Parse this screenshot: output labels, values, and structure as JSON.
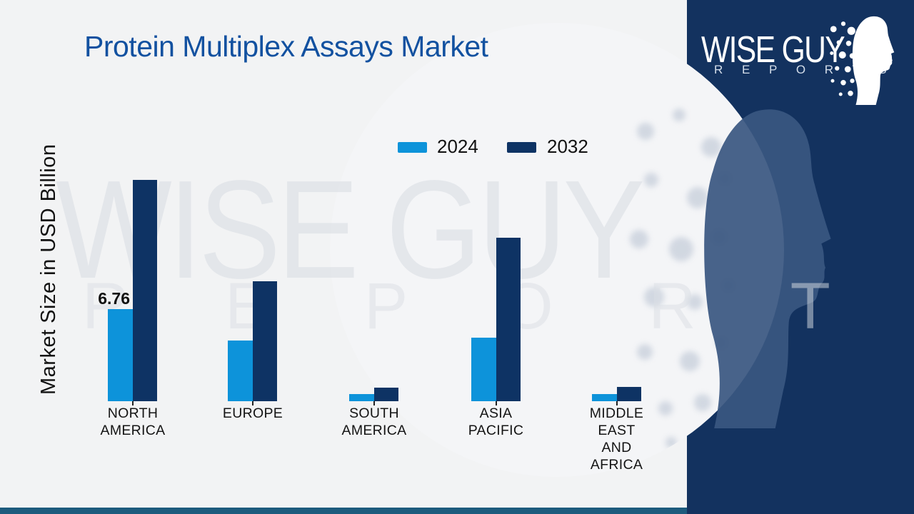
{
  "page": {
    "background": "#f2f3f4"
  },
  "header": {
    "title": "Protein Multiplex Assays Market",
    "title_color": "#1251a0"
  },
  "logo": {
    "brand": "WISE GUY",
    "sub": "R E P O R T S"
  },
  "watermark": {
    "line1": "WISE GUY",
    "line2": "R E P O R T S"
  },
  "colors": {
    "bar_2024": "#0d93da",
    "bar_2032": "#0e3364",
    "brand_panel": "#13325f",
    "bottom_strip": "#1d5b7d",
    "face_silhouette": "#3a5781"
  },
  "chart_data": {
    "type": "bar",
    "title": "Protein Multiplex Assays Market",
    "xlabel": "",
    "ylabel": "Market Size in USD Billion",
    "categories": [
      "NORTH AMERICA",
      "EUROPE",
      "SOUTH AMERICA",
      "ASIA PACIFIC",
      "MIDDLE EAST AND AFRICA"
    ],
    "categories_display": [
      "NORTH\nAMERICA",
      "EUROPE",
      "SOUTH\nAMERICA",
      "ASIA\nPACIFIC",
      "MIDDLE\nEAST\nAND\nAFRICA"
    ],
    "series": [
      {
        "name": "2024",
        "color": "#0d93da",
        "values": [
          6.76,
          4.45,
          0.52,
          4.66,
          0.52
        ]
      },
      {
        "name": "2032",
        "color": "#0e3364",
        "values": [
          16.25,
          8.8,
          1.0,
          12.0,
          1.05
        ]
      }
    ],
    "annotations": [
      {
        "text": "6.76",
        "series_index": 0,
        "category_index": 0
      }
    ],
    "ylim": [
      0,
      17
    ],
    "grid": false,
    "legend_position": "top"
  }
}
